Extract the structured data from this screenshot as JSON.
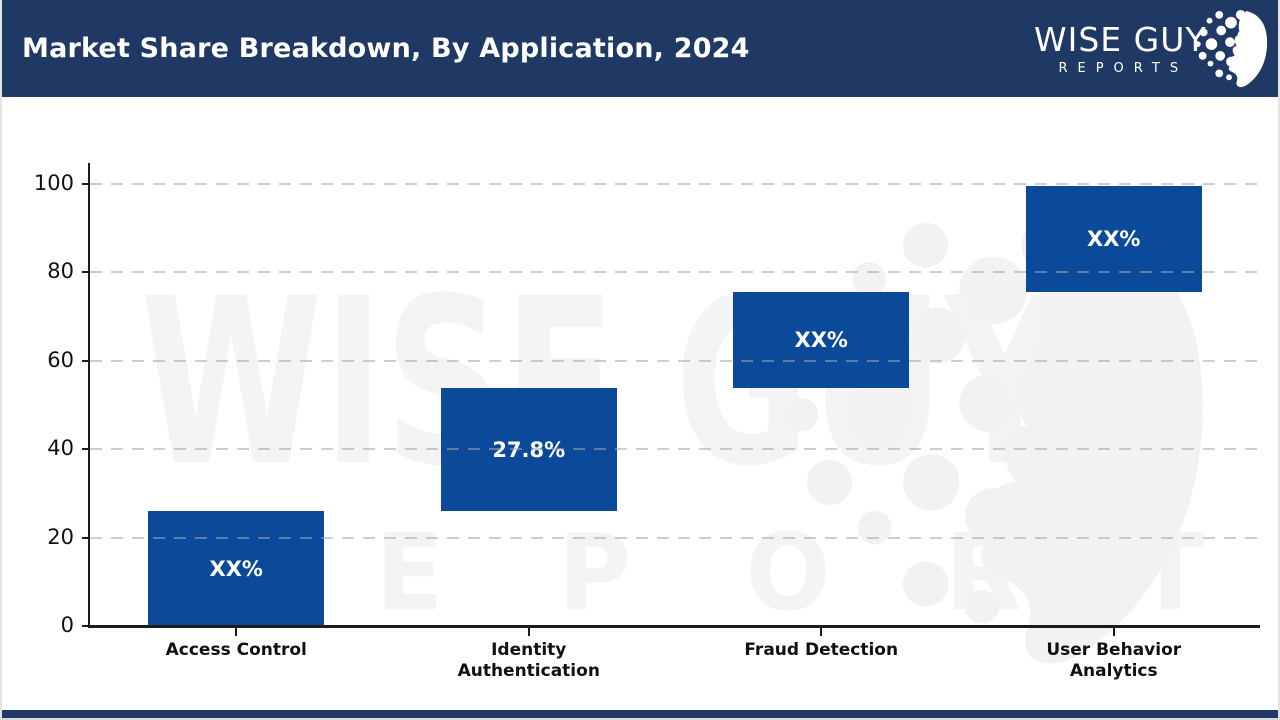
{
  "header": {
    "title": "Market Share Breakdown, By Application, 2024",
    "logo": {
      "line1": "WISE GUY",
      "line2": "REPORTS"
    }
  },
  "watermark": {
    "line1": "WISE GUY",
    "line2": "REPORTS"
  },
  "colors": {
    "header_bg": "#203864",
    "footer_bg": "#203864",
    "bar_fill": "#0b4a9b",
    "bar_label_text": "#ffffff",
    "axis": "#1c1c1c",
    "gridline": "#c8c8c8",
    "watermark": "#f4f4f4",
    "title_text": "#ffffff"
  },
  "chart_data": {
    "type": "bar",
    "subtype": "waterfall-floating-bars",
    "title": "Market Share Breakdown, By Application, 2024",
    "categories": [
      "Access Control",
      "Identity Authentication",
      "Fraud Detection",
      "User Behavior Analytics"
    ],
    "bars": [
      {
        "category": "Access Control",
        "label": "XX%",
        "start": 0,
        "end": 26
      },
      {
        "category": "Identity Authentication",
        "label": "27.8%",
        "start": 26,
        "end": 53.8
      },
      {
        "category": "Fraud Detection",
        "label": "XX%",
        "start": 53.8,
        "end": 75.5
      },
      {
        "category": "User Behavior Analytics",
        "label": "XX%",
        "start": 75.5,
        "end": 99.5
      }
    ],
    "xlabel": "",
    "ylabel": "",
    "ylim": [
      0,
      100
    ],
    "yticks": [
      0,
      20,
      40,
      60,
      80,
      100
    ],
    "grid": "horizontal-dashed-over-bars",
    "legend": "none"
  }
}
